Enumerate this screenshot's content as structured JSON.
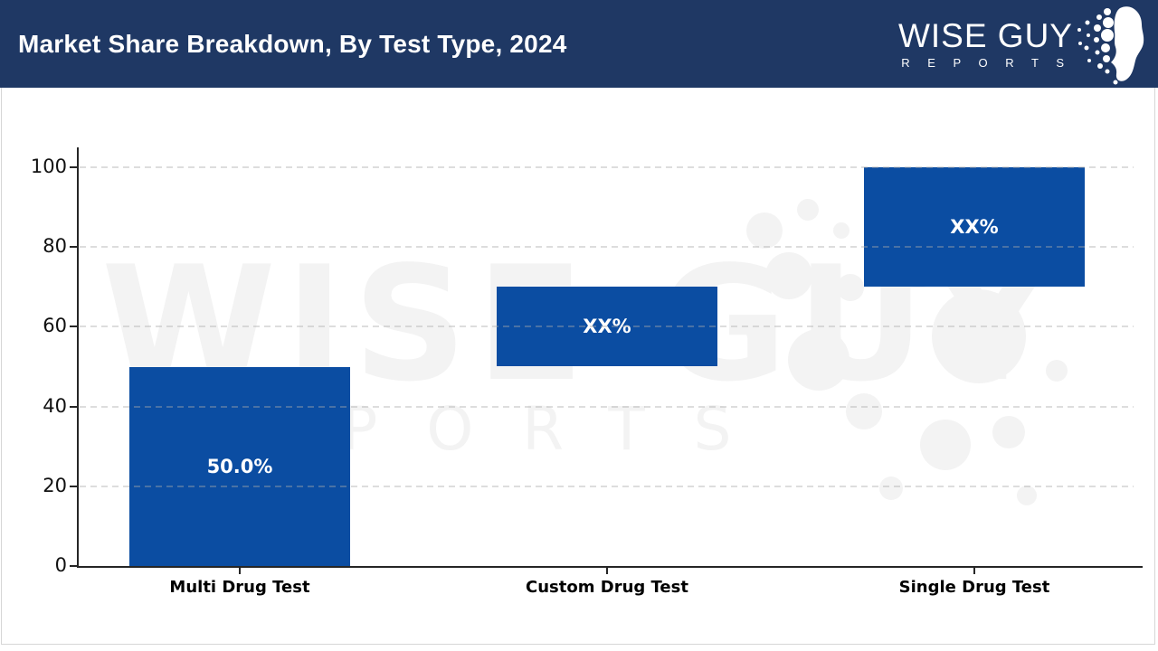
{
  "header": {
    "title": "Market Share Breakdown, By Test Type, 2024",
    "logo": {
      "primary": "WISE GUY",
      "secondary": "R E P O R T S"
    }
  },
  "watermark": {
    "line1": "WISE GUY",
    "line2": "REPORTS"
  },
  "colors": {
    "header_bg": "#1f3864",
    "bar": "#0b4da2",
    "bar_label": "#ffffff",
    "axis": "#262626",
    "grid": "#dfdfdf",
    "watermark": "#f3f3f3"
  },
  "chart_data": {
    "type": "bar",
    "subtype": "floating-segment (waterfall-style market share)",
    "title": "Market Share Breakdown, By Test Type, 2024",
    "categories": [
      "Multi Drug Test",
      "Custom Drug Test",
      "Single Drug Test"
    ],
    "bars": [
      {
        "category": "Multi Drug Test",
        "start": 0,
        "end": 50,
        "label": "50.0%"
      },
      {
        "category": "Custom Drug Test",
        "start": 50,
        "end": 70,
        "label": "XX%"
      },
      {
        "category": "Single Drug Test",
        "start": 70,
        "end": 100,
        "label": "XX%"
      }
    ],
    "ylabel": "",
    "xlabel": "",
    "y_ticks": [
      0,
      20,
      40,
      60,
      80,
      100
    ],
    "ylim": [
      0,
      105
    ],
    "grid": "horizontal dashed, drawn over bars",
    "legend": "none"
  }
}
